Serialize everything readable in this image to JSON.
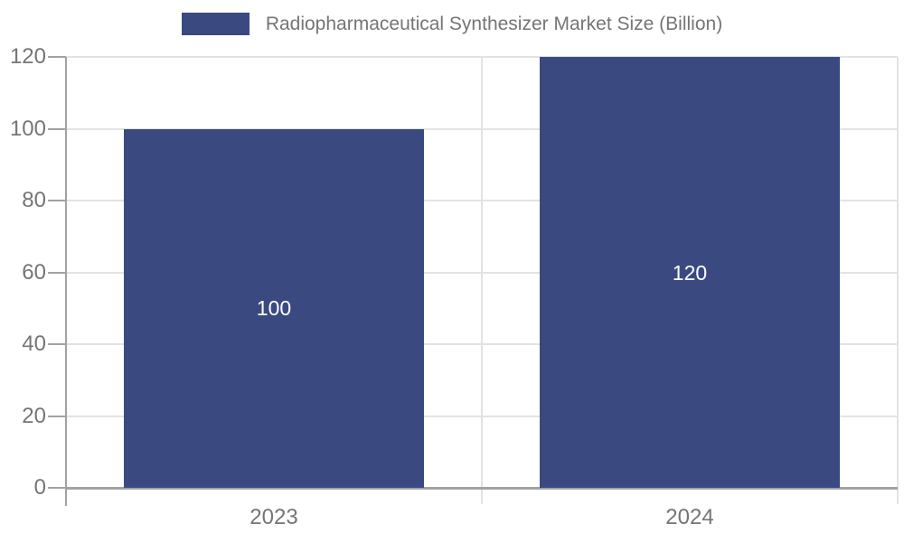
{
  "chart_data": {
    "type": "bar",
    "title": "Radiopharmaceutical Synthesizer Market Size (Billion)",
    "categories": [
      "2023",
      "2024"
    ],
    "series": [
      {
        "name": "Radiopharmaceutical Synthesizer Market Size (Billion)",
        "values": [
          100,
          120
        ]
      }
    ],
    "value_labels": [
      "100",
      "120"
    ],
    "xlabel": "",
    "ylabel": "",
    "ylim": [
      0,
      120
    ],
    "yticks": [
      0,
      20,
      40,
      60,
      80,
      100,
      120
    ],
    "grid": true,
    "legend_position": "top",
    "colors": {
      "bar": "#3A4A81",
      "legend_text": "#757575",
      "tick_text": "#757575",
      "axis": "#A2A2A2",
      "grid": "#E3E3E3",
      "value_label": "#FFFFFF",
      "background": "#FFFFFF"
    }
  }
}
